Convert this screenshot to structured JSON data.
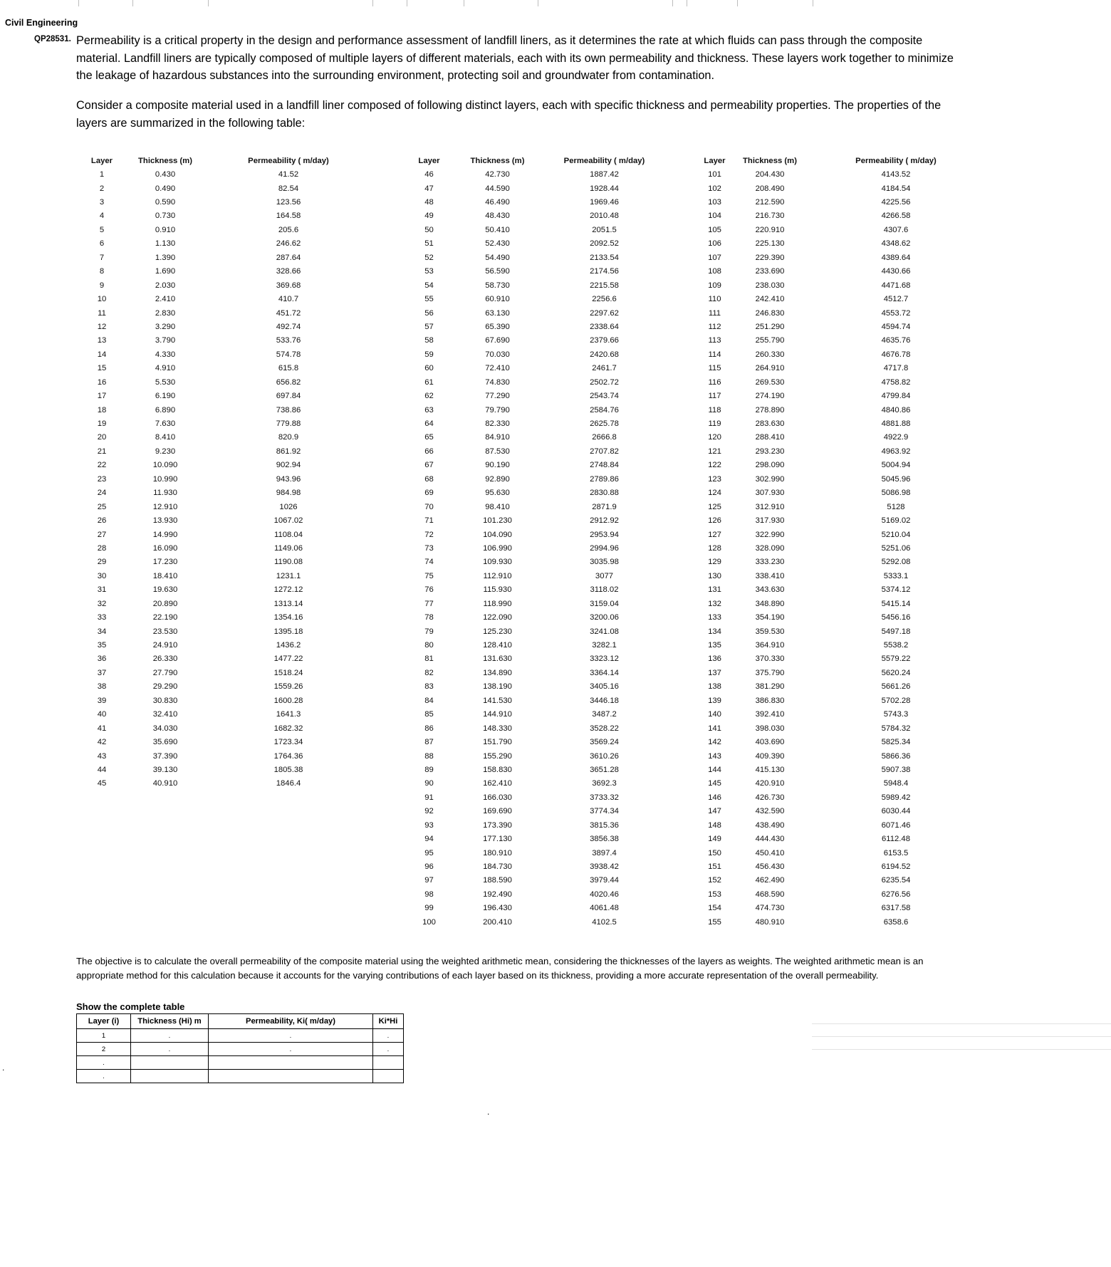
{
  "header": {
    "discipline": "Civil Engineering",
    "question_id": "QP28531."
  },
  "paragraphs": {
    "intro": "Permeability is a critical property in the design and performance assessment of landfill liners, as it determines the rate at which fluids can pass through the composite material. Landfill liners are typically composed of multiple layers of different materials, each with its own permeability and thickness. These layers work together to minimize the leakage of hazardous substances into the surrounding environment, protecting soil and groundwater from contamination.",
    "consider": "Consider a composite material used in a landfill liner composed of following distinct layers, each with specific thickness and permeability properties. The properties of the layers are summarized in the following table:",
    "objective": "The objective is to calculate the overall permeability of the composite material using the weighted arithmetic mean, considering the thicknesses of the layers as weights. The weighted arithmetic mean is an appropriate method for this calculation because it accounts for the varying contributions of each layer based on its thickness, providing a more accurate representation of the overall permeability."
  },
  "layers_table": {
    "column_headers": {
      "layer": "Layer",
      "thickness": "Thickness (m)",
      "permeability": "Permeability ( m/day)"
    },
    "groups": [
      {
        "rows": [
          [
            "1",
            "0.430",
            "41.52"
          ],
          [
            "2",
            "0.490",
            "82.54"
          ],
          [
            "3",
            "0.590",
            "123.56"
          ],
          [
            "4",
            "0.730",
            "164.58"
          ],
          [
            "5",
            "0.910",
            "205.6"
          ],
          [
            "6",
            "1.130",
            "246.62"
          ],
          [
            "7",
            "1.390",
            "287.64"
          ],
          [
            "8",
            "1.690",
            "328.66"
          ],
          [
            "9",
            "2.030",
            "369.68"
          ],
          [
            "10",
            "2.410",
            "410.7"
          ],
          [
            "11",
            "2.830",
            "451.72"
          ],
          [
            "12",
            "3.290",
            "492.74"
          ],
          [
            "13",
            "3.790",
            "533.76"
          ],
          [
            "14",
            "4.330",
            "574.78"
          ],
          [
            "15",
            "4.910",
            "615.8"
          ],
          [
            "16",
            "5.530",
            "656.82"
          ],
          [
            "17",
            "6.190",
            "697.84"
          ],
          [
            "18",
            "6.890",
            "738.86"
          ],
          [
            "19",
            "7.630",
            "779.88"
          ],
          [
            "20",
            "8.410",
            "820.9"
          ],
          [
            "21",
            "9.230",
            "861.92"
          ],
          [
            "22",
            "10.090",
            "902.94"
          ],
          [
            "23",
            "10.990",
            "943.96"
          ],
          [
            "24",
            "11.930",
            "984.98"
          ],
          [
            "25",
            "12.910",
            "1026"
          ],
          [
            "26",
            "13.930",
            "1067.02"
          ],
          [
            "27",
            "14.990",
            "1108.04"
          ],
          [
            "28",
            "16.090",
            "1149.06"
          ],
          [
            "29",
            "17.230",
            "1190.08"
          ],
          [
            "30",
            "18.410",
            "1231.1"
          ],
          [
            "31",
            "19.630",
            "1272.12"
          ],
          [
            "32",
            "20.890",
            "1313.14"
          ],
          [
            "33",
            "22.190",
            "1354.16"
          ],
          [
            "34",
            "23.530",
            "1395.18"
          ],
          [
            "35",
            "24.910",
            "1436.2"
          ],
          [
            "36",
            "26.330",
            "1477.22"
          ],
          [
            "37",
            "27.790",
            "1518.24"
          ],
          [
            "38",
            "29.290",
            "1559.26"
          ],
          [
            "39",
            "30.830",
            "1600.28"
          ],
          [
            "40",
            "32.410",
            "1641.3"
          ],
          [
            "41",
            "34.030",
            "1682.32"
          ],
          [
            "42",
            "35.690",
            "1723.34"
          ],
          [
            "43",
            "37.390",
            "1764.36"
          ],
          [
            "44",
            "39.130",
            "1805.38"
          ],
          [
            "45",
            "40.910",
            "1846.4"
          ]
        ]
      },
      {
        "rows": [
          [
            "46",
            "42.730",
            "1887.42"
          ],
          [
            "47",
            "44.590",
            "1928.44"
          ],
          [
            "48",
            "46.490",
            "1969.46"
          ],
          [
            "49",
            "48.430",
            "2010.48"
          ],
          [
            "50",
            "50.410",
            "2051.5"
          ],
          [
            "51",
            "52.430",
            "2092.52"
          ],
          [
            "52",
            "54.490",
            "2133.54"
          ],
          [
            "53",
            "56.590",
            "2174.56"
          ],
          [
            "54",
            "58.730",
            "2215.58"
          ],
          [
            "55",
            "60.910",
            "2256.6"
          ],
          [
            "56",
            "63.130",
            "2297.62"
          ],
          [
            "57",
            "65.390",
            "2338.64"
          ],
          [
            "58",
            "67.690",
            "2379.66"
          ],
          [
            "59",
            "70.030",
            "2420.68"
          ],
          [
            "60",
            "72.410",
            "2461.7"
          ],
          [
            "61",
            "74.830",
            "2502.72"
          ],
          [
            "62",
            "77.290",
            "2543.74"
          ],
          [
            "63",
            "79.790",
            "2584.76"
          ],
          [
            "64",
            "82.330",
            "2625.78"
          ],
          [
            "65",
            "84.910",
            "2666.8"
          ],
          [
            "66",
            "87.530",
            "2707.82"
          ],
          [
            "67",
            "90.190",
            "2748.84"
          ],
          [
            "68",
            "92.890",
            "2789.86"
          ],
          [
            "69",
            "95.630",
            "2830.88"
          ],
          [
            "70",
            "98.410",
            "2871.9"
          ],
          [
            "71",
            "101.230",
            "2912.92"
          ],
          [
            "72",
            "104.090",
            "2953.94"
          ],
          [
            "73",
            "106.990",
            "2994.96"
          ],
          [
            "74",
            "109.930",
            "3035.98"
          ],
          [
            "75",
            "112.910",
            "3077"
          ],
          [
            "76",
            "115.930",
            "3118.02"
          ],
          [
            "77",
            "118.990",
            "3159.04"
          ],
          [
            "78",
            "122.090",
            "3200.06"
          ],
          [
            "79",
            "125.230",
            "3241.08"
          ],
          [
            "80",
            "128.410",
            "3282.1"
          ],
          [
            "81",
            "131.630",
            "3323.12"
          ],
          [
            "82",
            "134.890",
            "3364.14"
          ],
          [
            "83",
            "138.190",
            "3405.16"
          ],
          [
            "84",
            "141.530",
            "3446.18"
          ],
          [
            "85",
            "144.910",
            "3487.2"
          ],
          [
            "86",
            "148.330",
            "3528.22"
          ],
          [
            "87",
            "151.790",
            "3569.24"
          ],
          [
            "88",
            "155.290",
            "3610.26"
          ],
          [
            "89",
            "158.830",
            "3651.28"
          ],
          [
            "90",
            "162.410",
            "3692.3"
          ],
          [
            "91",
            "166.030",
            "3733.32"
          ],
          [
            "92",
            "169.690",
            "3774.34"
          ],
          [
            "93",
            "173.390",
            "3815.36"
          ],
          [
            "94",
            "177.130",
            "3856.38"
          ],
          [
            "95",
            "180.910",
            "3897.4"
          ],
          [
            "96",
            "184.730",
            "3938.42"
          ],
          [
            "97",
            "188.590",
            "3979.44"
          ],
          [
            "98",
            "192.490",
            "4020.46"
          ],
          [
            "99",
            "196.430",
            "4061.48"
          ],
          [
            "100",
            "200.410",
            "4102.5"
          ]
        ]
      },
      {
        "rows": [
          [
            "101",
            "204.430",
            "4143.52"
          ],
          [
            "102",
            "208.490",
            "4184.54"
          ],
          [
            "103",
            "212.590",
            "4225.56"
          ],
          [
            "104",
            "216.730",
            "4266.58"
          ],
          [
            "105",
            "220.910",
            "4307.6"
          ],
          [
            "106",
            "225.130",
            "4348.62"
          ],
          [
            "107",
            "229.390",
            "4389.64"
          ],
          [
            "108",
            "233.690",
            "4430.66"
          ],
          [
            "109",
            "238.030",
            "4471.68"
          ],
          [
            "110",
            "242.410",
            "4512.7"
          ],
          [
            "111",
            "246.830",
            "4553.72"
          ],
          [
            "112",
            "251.290",
            "4594.74"
          ],
          [
            "113",
            "255.790",
            "4635.76"
          ],
          [
            "114",
            "260.330",
            "4676.78"
          ],
          [
            "115",
            "264.910",
            "4717.8"
          ],
          [
            "116",
            "269.530",
            "4758.82"
          ],
          [
            "117",
            "274.190",
            "4799.84"
          ],
          [
            "118",
            "278.890",
            "4840.86"
          ],
          [
            "119",
            "283.630",
            "4881.88"
          ],
          [
            "120",
            "288.410",
            "4922.9"
          ],
          [
            "121",
            "293.230",
            "4963.92"
          ],
          [
            "122",
            "298.090",
            "5004.94"
          ],
          [
            "123",
            "302.990",
            "5045.96"
          ],
          [
            "124",
            "307.930",
            "5086.98"
          ],
          [
            "125",
            "312.910",
            "5128"
          ],
          [
            "126",
            "317.930",
            "5169.02"
          ],
          [
            "127",
            "322.990",
            "5210.04"
          ],
          [
            "128",
            "328.090",
            "5251.06"
          ],
          [
            "129",
            "333.230",
            "5292.08"
          ],
          [
            "130",
            "338.410",
            "5333.1"
          ],
          [
            "131",
            "343.630",
            "5374.12"
          ],
          [
            "132",
            "348.890",
            "5415.14"
          ],
          [
            "133",
            "354.190",
            "5456.16"
          ],
          [
            "134",
            "359.530",
            "5497.18"
          ],
          [
            "135",
            "364.910",
            "5538.2"
          ],
          [
            "136",
            "370.330",
            "5579.22"
          ],
          [
            "137",
            "375.790",
            "5620.24"
          ],
          [
            "138",
            "381.290",
            "5661.26"
          ],
          [
            "139",
            "386.830",
            "5702.28"
          ],
          [
            "140",
            "392.410",
            "5743.3"
          ],
          [
            "141",
            "398.030",
            "5784.32"
          ],
          [
            "142",
            "403.690",
            "5825.34"
          ],
          [
            "143",
            "409.390",
            "5866.36"
          ],
          [
            "144",
            "415.130",
            "5907.38"
          ],
          [
            "145",
            "420.910",
            "5948.4"
          ],
          [
            "146",
            "426.730",
            "5989.42"
          ],
          [
            "147",
            "432.590",
            "6030.44"
          ],
          [
            "148",
            "438.490",
            "6071.46"
          ],
          [
            "149",
            "444.430",
            "6112.48"
          ],
          [
            "150",
            "450.410",
            "6153.5"
          ],
          [
            "151",
            "456.430",
            "6194.52"
          ],
          [
            "152",
            "462.490",
            "6235.54"
          ],
          [
            "153",
            "468.590",
            "6276.56"
          ],
          [
            "154",
            "474.730",
            "6317.58"
          ],
          [
            "155",
            "480.910",
            "6358.6"
          ]
        ]
      }
    ]
  },
  "worksheet": {
    "show_label": "Show  the complete table",
    "headers": [
      "Layer (i)",
      "Thickness (Hi) m",
      "Permeability, Ki( m/day)",
      "Ki*Hi"
    ],
    "rows": [
      [
        "1",
        ".",
        ".",
        "."
      ],
      [
        "2",
        ".",
        ".",
        "."
      ],
      [
        ".",
        "",
        "",
        ""
      ],
      [
        ".",
        "",
        "",
        ""
      ]
    ]
  },
  "stray_marks": {
    "left_dot": ".",
    "bottom_dot": "."
  }
}
